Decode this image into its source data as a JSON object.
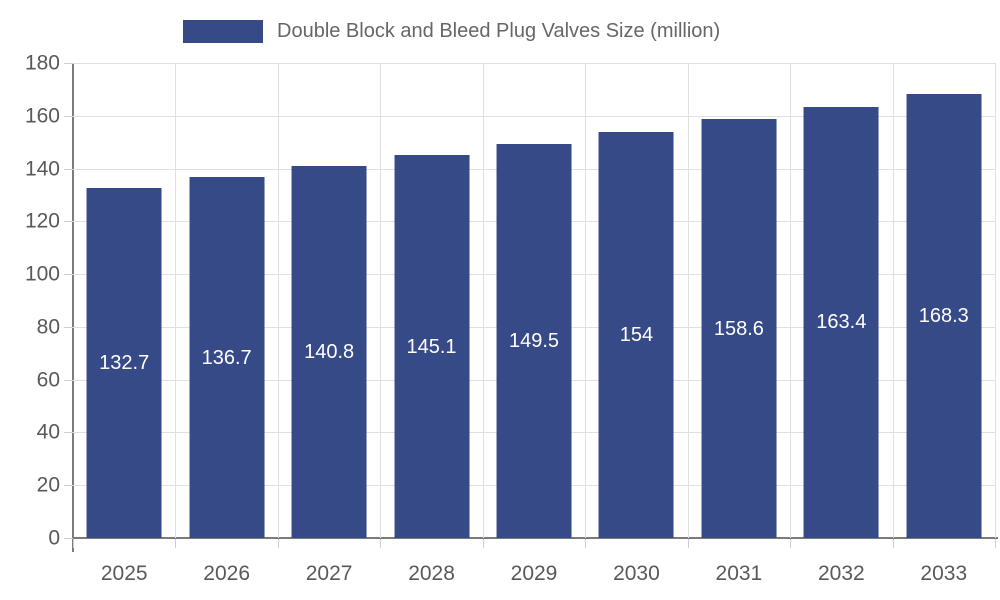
{
  "chart_data": {
    "type": "bar",
    "legend": "Double Block and Bleed Plug Valves Size (million)",
    "legend_position": "top",
    "categories": [
      "2025",
      "2026",
      "2027",
      "2028",
      "2029",
      "2030",
      "2031",
      "2032",
      "2033"
    ],
    "values": [
      132.7,
      136.7,
      140.8,
      145.1,
      149.5,
      154,
      158.6,
      163.4,
      168.3
    ],
    "value_labels": [
      "132.7",
      "136.7",
      "140.8",
      "145.1",
      "149.5",
      "154",
      "158.6",
      "163.4",
      "168.3"
    ],
    "xlabel": "",
    "ylabel": "",
    "ylim": [
      0,
      180
    ],
    "yticks": [
      0,
      20,
      40,
      60,
      80,
      100,
      120,
      140,
      160,
      180
    ],
    "grid": true,
    "colors": {
      "bar": "#374A88",
      "grid": "#e0e0e0",
      "axis": "#7b7b7b",
      "tick_label": "#595959",
      "value_label": "#ffffff",
      "background": "#ffffff"
    }
  }
}
